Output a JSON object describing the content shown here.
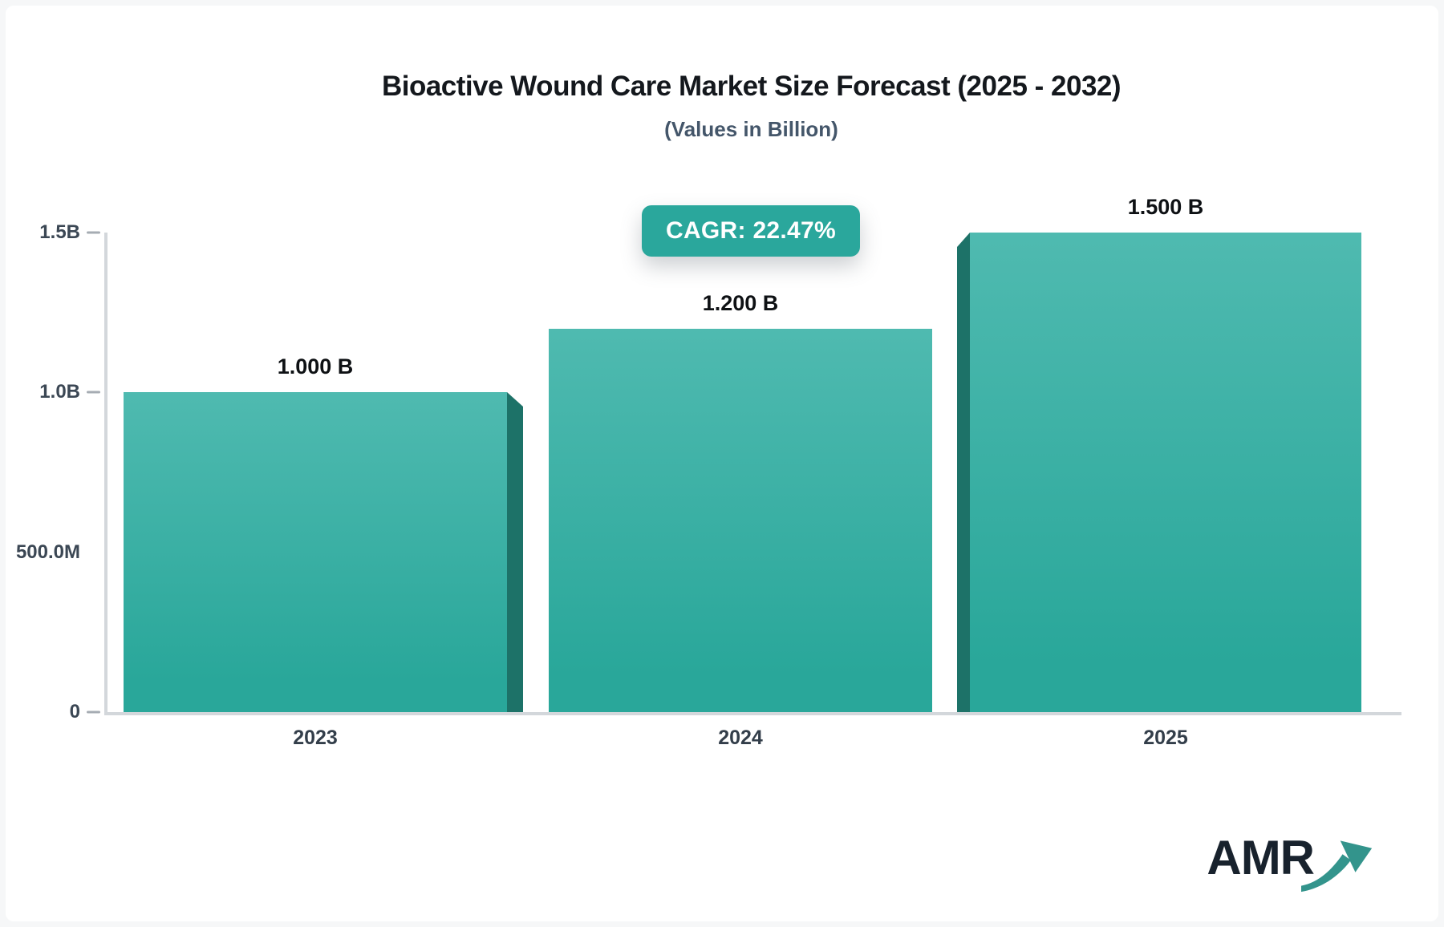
{
  "page": {
    "background": "#f6f7f8",
    "card_background": "#ffffff"
  },
  "header": {
    "title": "Bioactive Wound Care Market Size Forecast (2025 - 2032)",
    "subtitle": "(Values in Billion)"
  },
  "badge": {
    "label": "CAGR: 22.47%",
    "background": "#2aa79c",
    "text_color": "#ffffff"
  },
  "chart_data": {
    "type": "bar",
    "title": "Bioactive Wound Care Market Size Forecast (2025 - 2032)",
    "subtitle": "(Values in Billion)",
    "categories": [
      "2023",
      "2024",
      "2025"
    ],
    "values": [
      1.0,
      1.2,
      1.5
    ],
    "value_labels": [
      "1.000 B",
      "1.200 B",
      "1.500 B"
    ],
    "xlabel": "",
    "ylabel": "",
    "ylim": [
      0,
      1.5
    ],
    "yticks": [
      {
        "label": "1.5B",
        "value": 1.5,
        "dash": true
      },
      {
        "label": "1.0B",
        "value": 1.0,
        "dash": true
      },
      {
        "label": "500.0M",
        "value": 0.5,
        "dash": false
      },
      {
        "label": "0",
        "value": 0.0,
        "dash": true
      }
    ],
    "grid": false,
    "legend": "none",
    "bar_colors": {
      "top": "#4fbab0",
      "bottom": "#29a79a",
      "bevel": "#1d7268"
    },
    "annotation": "CAGR: 22.47%"
  },
  "logo": {
    "text": "AMR",
    "text_color": "#18222d",
    "arrow_color": "#33948c"
  }
}
